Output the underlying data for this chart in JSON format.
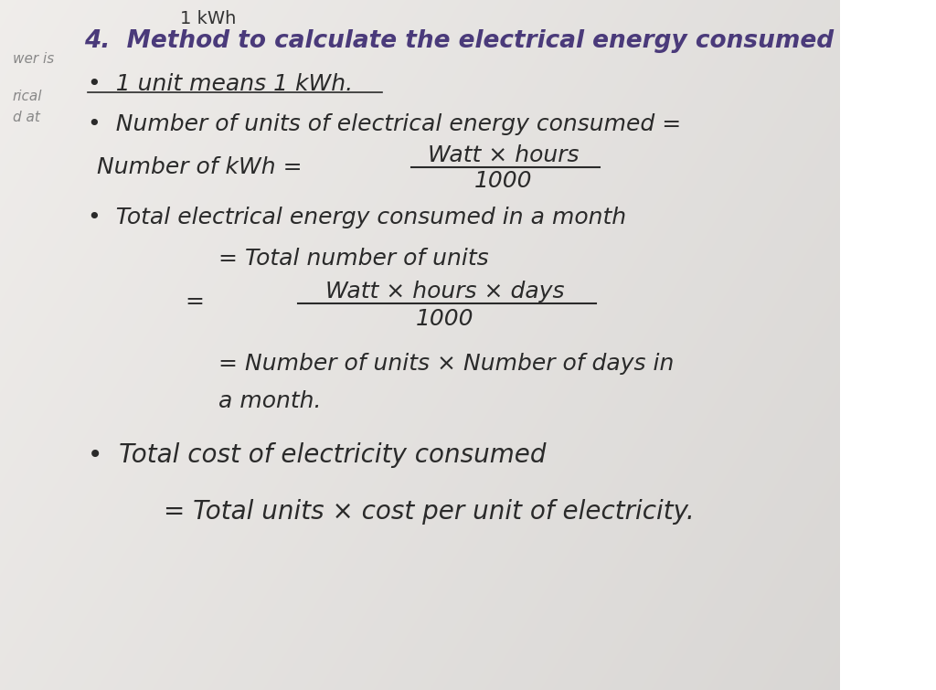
{
  "bg_color_top": "#e8e8e8",
  "bg_color_mid": "#d8d8d8",
  "bg_color_bot": "#c8c8c8",
  "text_color": "#2a2a2a",
  "title_color": "#4a3a7a",
  "title": "4.  Method to calculate the electrical energy consumed",
  "title_fontsize": 19,
  "bullet1": "•  1 unit means 1 kWh.",
  "bullet2_a": "•  Number of units of electrical energy consumed =",
  "bullet2_b": "Number of kWh = ",
  "frac1_num": "Watt × hours",
  "frac1_den": "1000",
  "bullet3": "•  Total electrical energy consumed in a month",
  "eq1": "= Total number of units",
  "frac2_num": "Watt × hours × days",
  "eq2_lhs": "=",
  "frac2_den": "1000",
  "eq3": "= Number of units × Number of days in",
  "eq3b": "a month.",
  "bullet4": "•  Total cost of electricity consumed",
  "eq4": "= Total units × cost per unit of electricity.",
  "top_partial": "1 kWh",
  "left_partial_1": "wer is",
  "left_partial_2": "rical",
  "left_partial_3": "d at",
  "main_fontsize": 18,
  "sub_fontsize": 18
}
